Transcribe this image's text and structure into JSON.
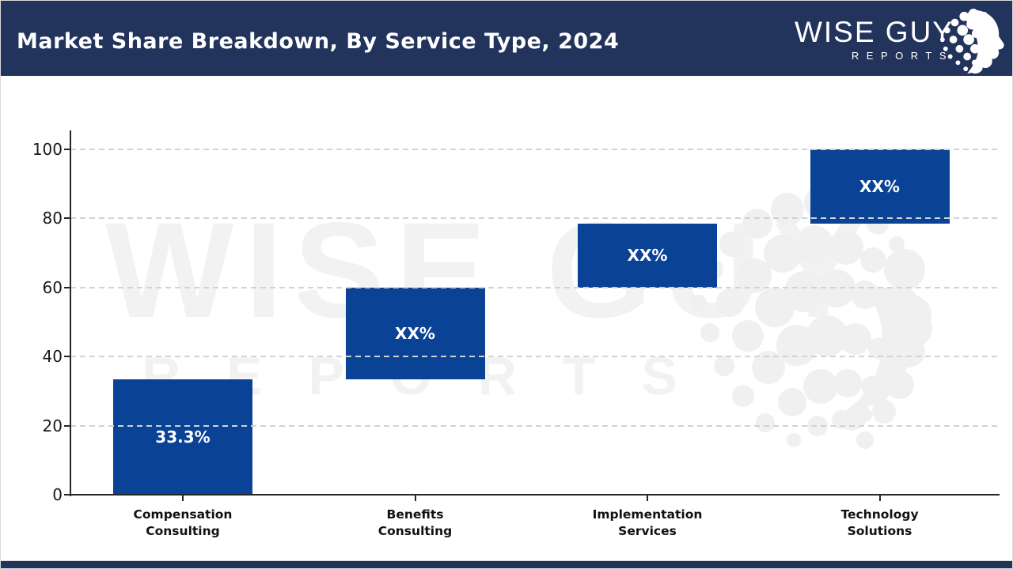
{
  "header": {
    "title": "Market Share Breakdown, By Service Type, 2024",
    "logo": {
      "line1": "WISE GUY",
      "line2": "REPORTS"
    }
  },
  "watermark": {
    "line1": "WISE GUY",
    "line2": "REPORTS"
  },
  "chart_data": {
    "type": "bar",
    "subtype": "waterfall",
    "title": "Market Share Breakdown, By Service Type, 2024",
    "categories": [
      [
        "Compensation",
        "Consulting"
      ],
      [
        "Benefits",
        "Consulting"
      ],
      [
        "Implementation",
        "Services"
      ],
      [
        "Technology",
        "Solutions"
      ]
    ],
    "segments": [
      {
        "label": "33.3%",
        "base": 0,
        "top": 33.3
      },
      {
        "label": "XX%",
        "base": 33.3,
        "top": 60
      },
      {
        "label": "XX%",
        "base": 60,
        "top": 78.5
      },
      {
        "label": "XX%",
        "base": 78.5,
        "top": 100
      }
    ],
    "ylabel": "",
    "xlabel": "",
    "ylim": [
      0,
      100
    ],
    "yticks": [
      0,
      20,
      40,
      60,
      80,
      100
    ],
    "grid": "horizontal-dashed-over-bars",
    "legend": "none"
  },
  "colors": {
    "header_bg": "#22345c",
    "footer_bg": "#22345c",
    "bar": "#0a4296",
    "bar_label": "#ffffff",
    "grid": "#d2d2d2",
    "axis": "#262626",
    "watermark": "#f2f2f2",
    "page_border": "#d9d9d9"
  }
}
